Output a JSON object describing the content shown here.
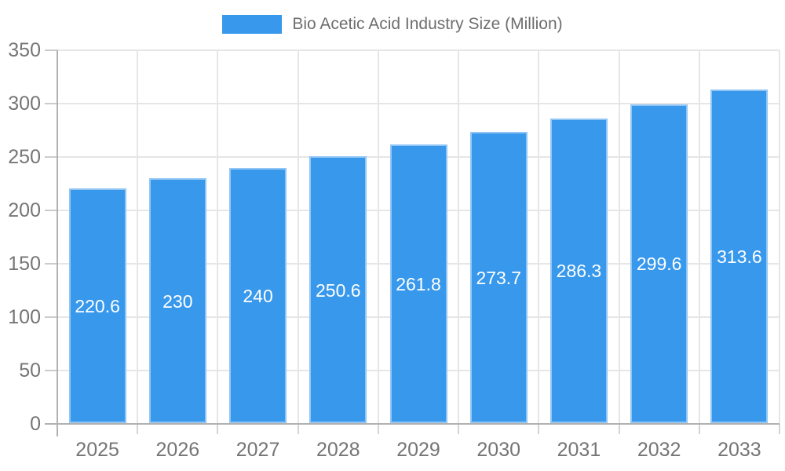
{
  "chart_data": {
    "type": "bar",
    "legend": "Bio Acetic Acid Industry Size (Million)",
    "legend_position": "top",
    "categories": [
      "2025",
      "2026",
      "2027",
      "2028",
      "2029",
      "2030",
      "2031",
      "2032",
      "2033"
    ],
    "values": [
      220.6,
      230,
      240,
      250.6,
      261.8,
      273.7,
      286.3,
      299.6,
      313.6
    ],
    "value_labels": [
      "220.6",
      "230",
      "240",
      "250.6",
      "261.8",
      "273.7",
      "286.3",
      "299.6",
      "313.6"
    ],
    "xlabel": "",
    "ylabel": "",
    "ylim": [
      0,
      350
    ],
    "yticks": [
      0,
      50,
      100,
      150,
      200,
      250,
      300,
      350
    ],
    "grid": "both",
    "colors": {
      "bar": "#3898ec",
      "value_label": "#ffffff",
      "axis_text": "#757575",
      "legend_text": "#6e6e6e",
      "grid_line": "#e6e6e6",
      "axis_line": "#b1b1b1",
      "tick_line": "#cccccc"
    }
  }
}
